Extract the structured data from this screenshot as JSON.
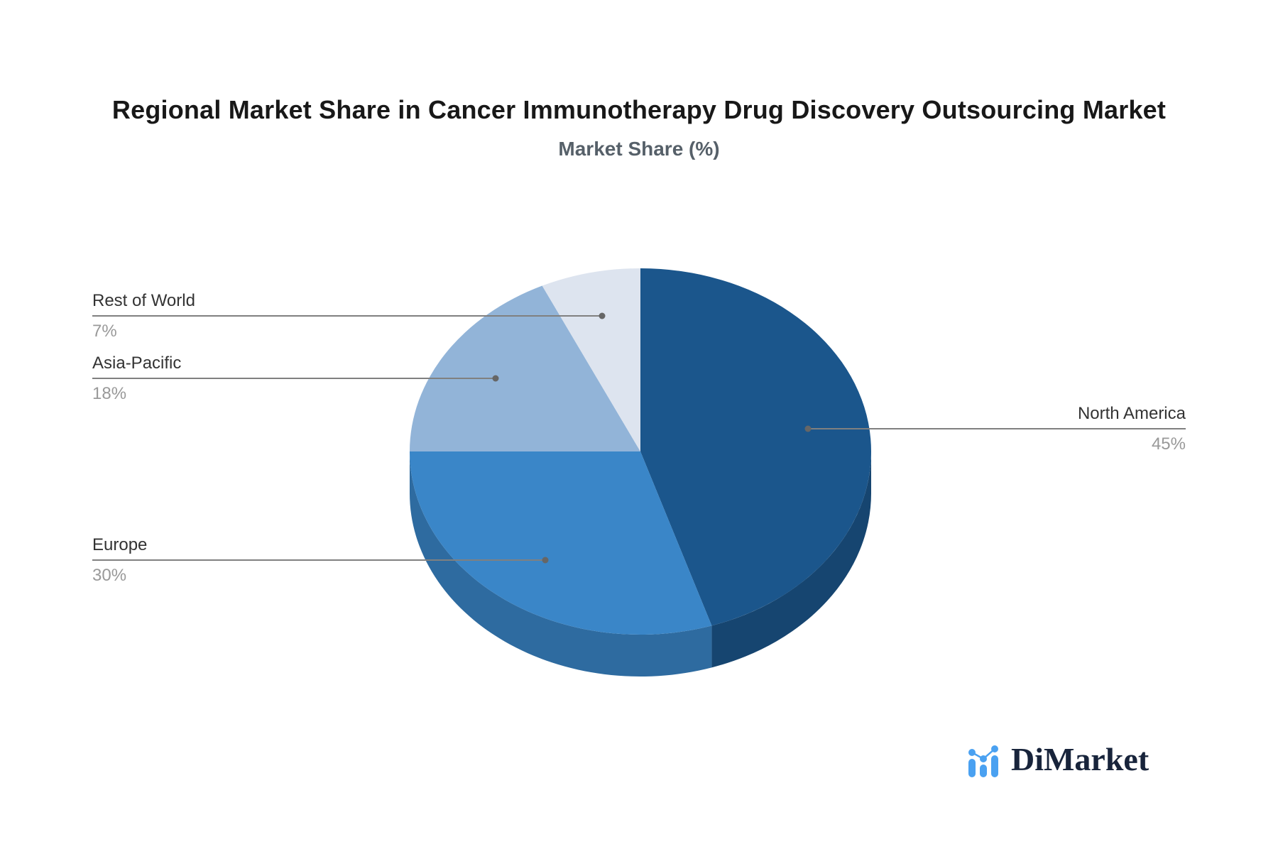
{
  "chart_data": {
    "type": "pie",
    "title": "Regional Market Share in Cancer Immunotherapy Drug Discovery Outsourcing Market",
    "subtitle": "Market Share (%)",
    "unit": "%",
    "start_angle_deg": 0,
    "clockwise": true,
    "legend": "none (leader-line labels)",
    "slices": [
      {
        "name": "North America",
        "value": 45,
        "pct_label": "45%",
        "color": "#1b568c",
        "label_side": "right"
      },
      {
        "name": "Europe",
        "value": 30,
        "pct_label": "30%",
        "color": "#3a86c8",
        "label_side": "left"
      },
      {
        "name": "Asia-Pacific",
        "value": 18,
        "pct_label": "18%",
        "color": "#92b4d8",
        "label_side": "left"
      },
      {
        "name": "Rest of World",
        "value": 7,
        "pct_label": "7%",
        "color": "#dde4ef",
        "label_side": "left"
      }
    ],
    "connector_color": "#808080",
    "connector_dot_color": "#666666",
    "label_name_color": "#333333",
    "label_percent_color": "#999999"
  },
  "brand": {
    "name": "DiMarket",
    "mark_color": "#4aa1f1",
    "text_color": "#18243b"
  }
}
